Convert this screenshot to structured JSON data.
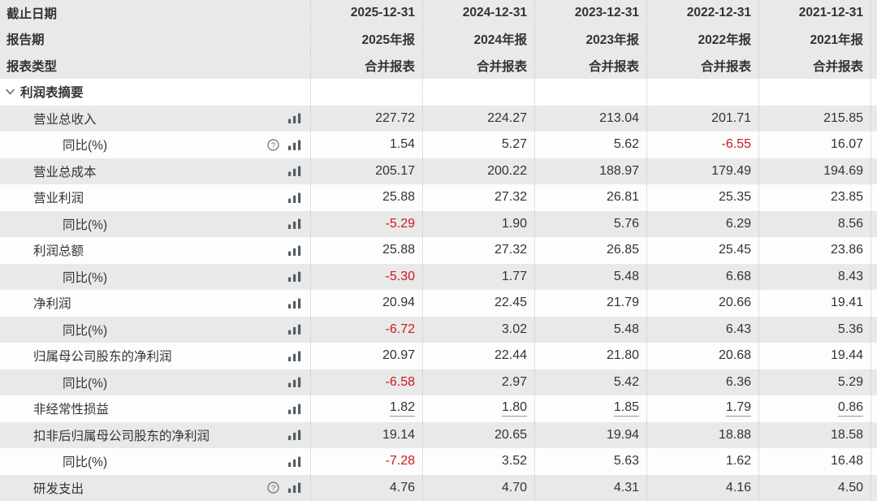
{
  "header": {
    "lines": [
      {
        "id": "end-date",
        "label": "截止日期",
        "values": [
          "2025-12-31",
          "2024-12-31",
          "2023-12-31",
          "2022-12-31",
          "2021-12-31"
        ]
      },
      {
        "id": "report-period",
        "label": "报告期",
        "values": [
          "2025年报",
          "2024年报",
          "2023年报",
          "2022年报",
          "2021年报"
        ]
      },
      {
        "id": "report-type",
        "label": "报表类型",
        "values": [
          "合并报表",
          "合并报表",
          "合并报表",
          "合并报表",
          "合并报表"
        ]
      }
    ]
  },
  "section": {
    "title": "利润表摘要"
  },
  "rows": [
    {
      "name": "营业总收入",
      "level": 1,
      "help": false,
      "chart": true,
      "underline": false,
      "values": [
        "227.72",
        "224.27",
        "213.04",
        "201.71",
        "215.85"
      ]
    },
    {
      "name": "同比(%)",
      "level": 2,
      "help": true,
      "chart": true,
      "underline": false,
      "values": [
        "1.54",
        "5.27",
        "5.62",
        "-6.55",
        "16.07"
      ]
    },
    {
      "name": "营业总成本",
      "level": 1,
      "help": false,
      "chart": true,
      "underline": false,
      "values": [
        "205.17",
        "200.22",
        "188.97",
        "179.49",
        "194.69"
      ]
    },
    {
      "name": "营业利润",
      "level": 1,
      "help": false,
      "chart": true,
      "underline": false,
      "values": [
        "25.88",
        "27.32",
        "26.81",
        "25.35",
        "23.85"
      ]
    },
    {
      "name": "同比(%)",
      "level": 2,
      "help": false,
      "chart": true,
      "underline": false,
      "values": [
        "-5.29",
        "1.90",
        "5.76",
        "6.29",
        "8.56"
      ]
    },
    {
      "name": "利润总额",
      "level": 1,
      "help": false,
      "chart": true,
      "underline": false,
      "values": [
        "25.88",
        "27.32",
        "26.85",
        "25.45",
        "23.86"
      ]
    },
    {
      "name": "同比(%)",
      "level": 2,
      "help": false,
      "chart": true,
      "underline": false,
      "values": [
        "-5.30",
        "1.77",
        "5.48",
        "6.68",
        "8.43"
      ]
    },
    {
      "name": "净利润",
      "level": 1,
      "help": false,
      "chart": true,
      "underline": false,
      "values": [
        "20.94",
        "22.45",
        "21.79",
        "20.66",
        "19.41"
      ]
    },
    {
      "name": "同比(%)",
      "level": 2,
      "help": false,
      "chart": true,
      "underline": false,
      "values": [
        "-6.72",
        "3.02",
        "5.48",
        "6.43",
        "5.36"
      ]
    },
    {
      "name": "归属母公司股东的净利润",
      "level": 1,
      "help": false,
      "chart": true,
      "underline": false,
      "values": [
        "20.97",
        "22.44",
        "21.80",
        "20.68",
        "19.44"
      ]
    },
    {
      "name": "同比(%)",
      "level": 2,
      "help": false,
      "chart": true,
      "underline": false,
      "values": [
        "-6.58",
        "2.97",
        "5.42",
        "6.36",
        "5.29"
      ]
    },
    {
      "name": "非经常性损益",
      "level": 1,
      "help": false,
      "chart": true,
      "underline": true,
      "values": [
        "1.82",
        "1.80",
        "1.85",
        "1.79",
        "0.86"
      ]
    },
    {
      "name": "扣非后归属母公司股东的净利润",
      "level": 1,
      "help": false,
      "chart": true,
      "underline": false,
      "values": [
        "19.14",
        "20.65",
        "19.94",
        "18.88",
        "18.58"
      ]
    },
    {
      "name": "同比(%)",
      "level": 2,
      "help": false,
      "chart": true,
      "underline": false,
      "values": [
        "-7.28",
        "3.52",
        "5.63",
        "1.62",
        "16.48"
      ]
    },
    {
      "name": "研发支出",
      "level": 1,
      "help": true,
      "chart": true,
      "underline": false,
      "values": [
        "4.76",
        "4.70",
        "4.31",
        "4.16",
        "4.50"
      ]
    }
  ],
  "icons": {
    "chart": "bar-chart-icon",
    "help": "help-icon",
    "section": "chevron-down-icon"
  },
  "colors": {
    "header_bg": "#e9e9e9",
    "row_alt_bg": "#e9e9e9",
    "row_bg": "#fdfdfd",
    "text": "#333333",
    "negative": "#d0161c",
    "divider": "#c6c6c6",
    "icon": "#535d66"
  }
}
